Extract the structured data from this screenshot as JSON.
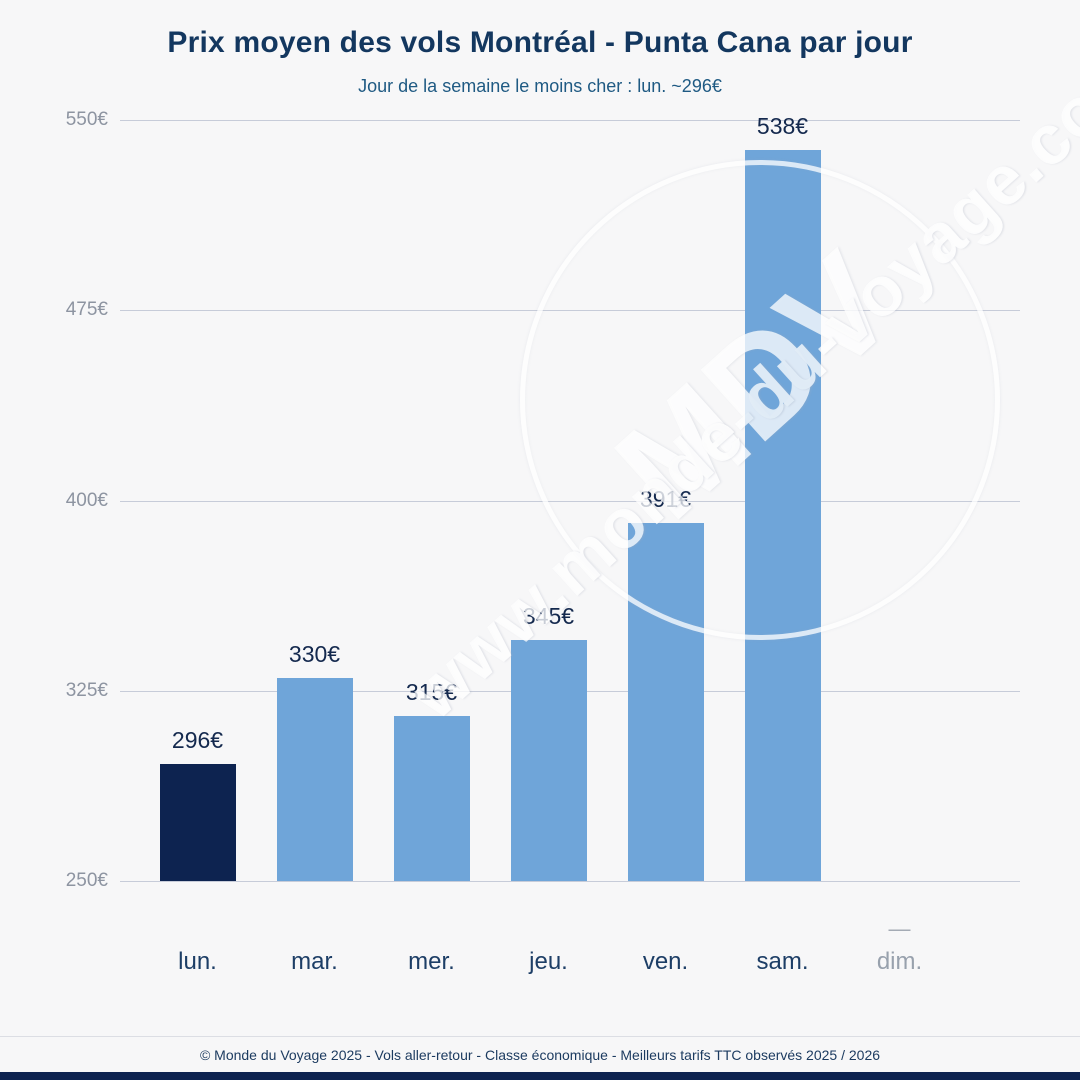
{
  "header": {
    "title": "Prix moyen des vols Montréal - Punta Cana par jour",
    "subtitle": "Jour de la semaine le moins cher : lun. ~296€"
  },
  "chart_data": {
    "type": "bar",
    "title": "Prix moyen des vols Montréal - Punta Cana par jour",
    "categories": [
      "lun.",
      "mar.",
      "mer.",
      "jeu.",
      "ven.",
      "sam.",
      "dim."
    ],
    "values": [
      296,
      330,
      315,
      345,
      391,
      538,
      null
    ],
    "value_labels": [
      "296€",
      "330€",
      "315€",
      "345€",
      "391€",
      "538€",
      "—"
    ],
    "ylim": [
      250,
      550
    ],
    "yticks": [
      550,
      475,
      400,
      325,
      250
    ],
    "ytick_labels": [
      "550€",
      "475€",
      "400€",
      "325€",
      "250€"
    ],
    "highlight_index": 0,
    "grid": "horizontal",
    "legend": "none",
    "colors": {
      "bar": "#6fa5d9",
      "highlight_bar": "#0d2350",
      "gridline": "#c7ccd9",
      "value_label": "#14294e",
      "axis_label": "#1d3e66",
      "muted_label": "#98a1ad"
    }
  },
  "watermark": {
    "url_text": "www.monde-du-voyage.com",
    "badge": "MDV"
  },
  "footer": {
    "text": "© Monde du Voyage 2025 - Vols aller-retour - Classe économique - Meilleurs tarifs TTC observés 2025 / 2026"
  }
}
